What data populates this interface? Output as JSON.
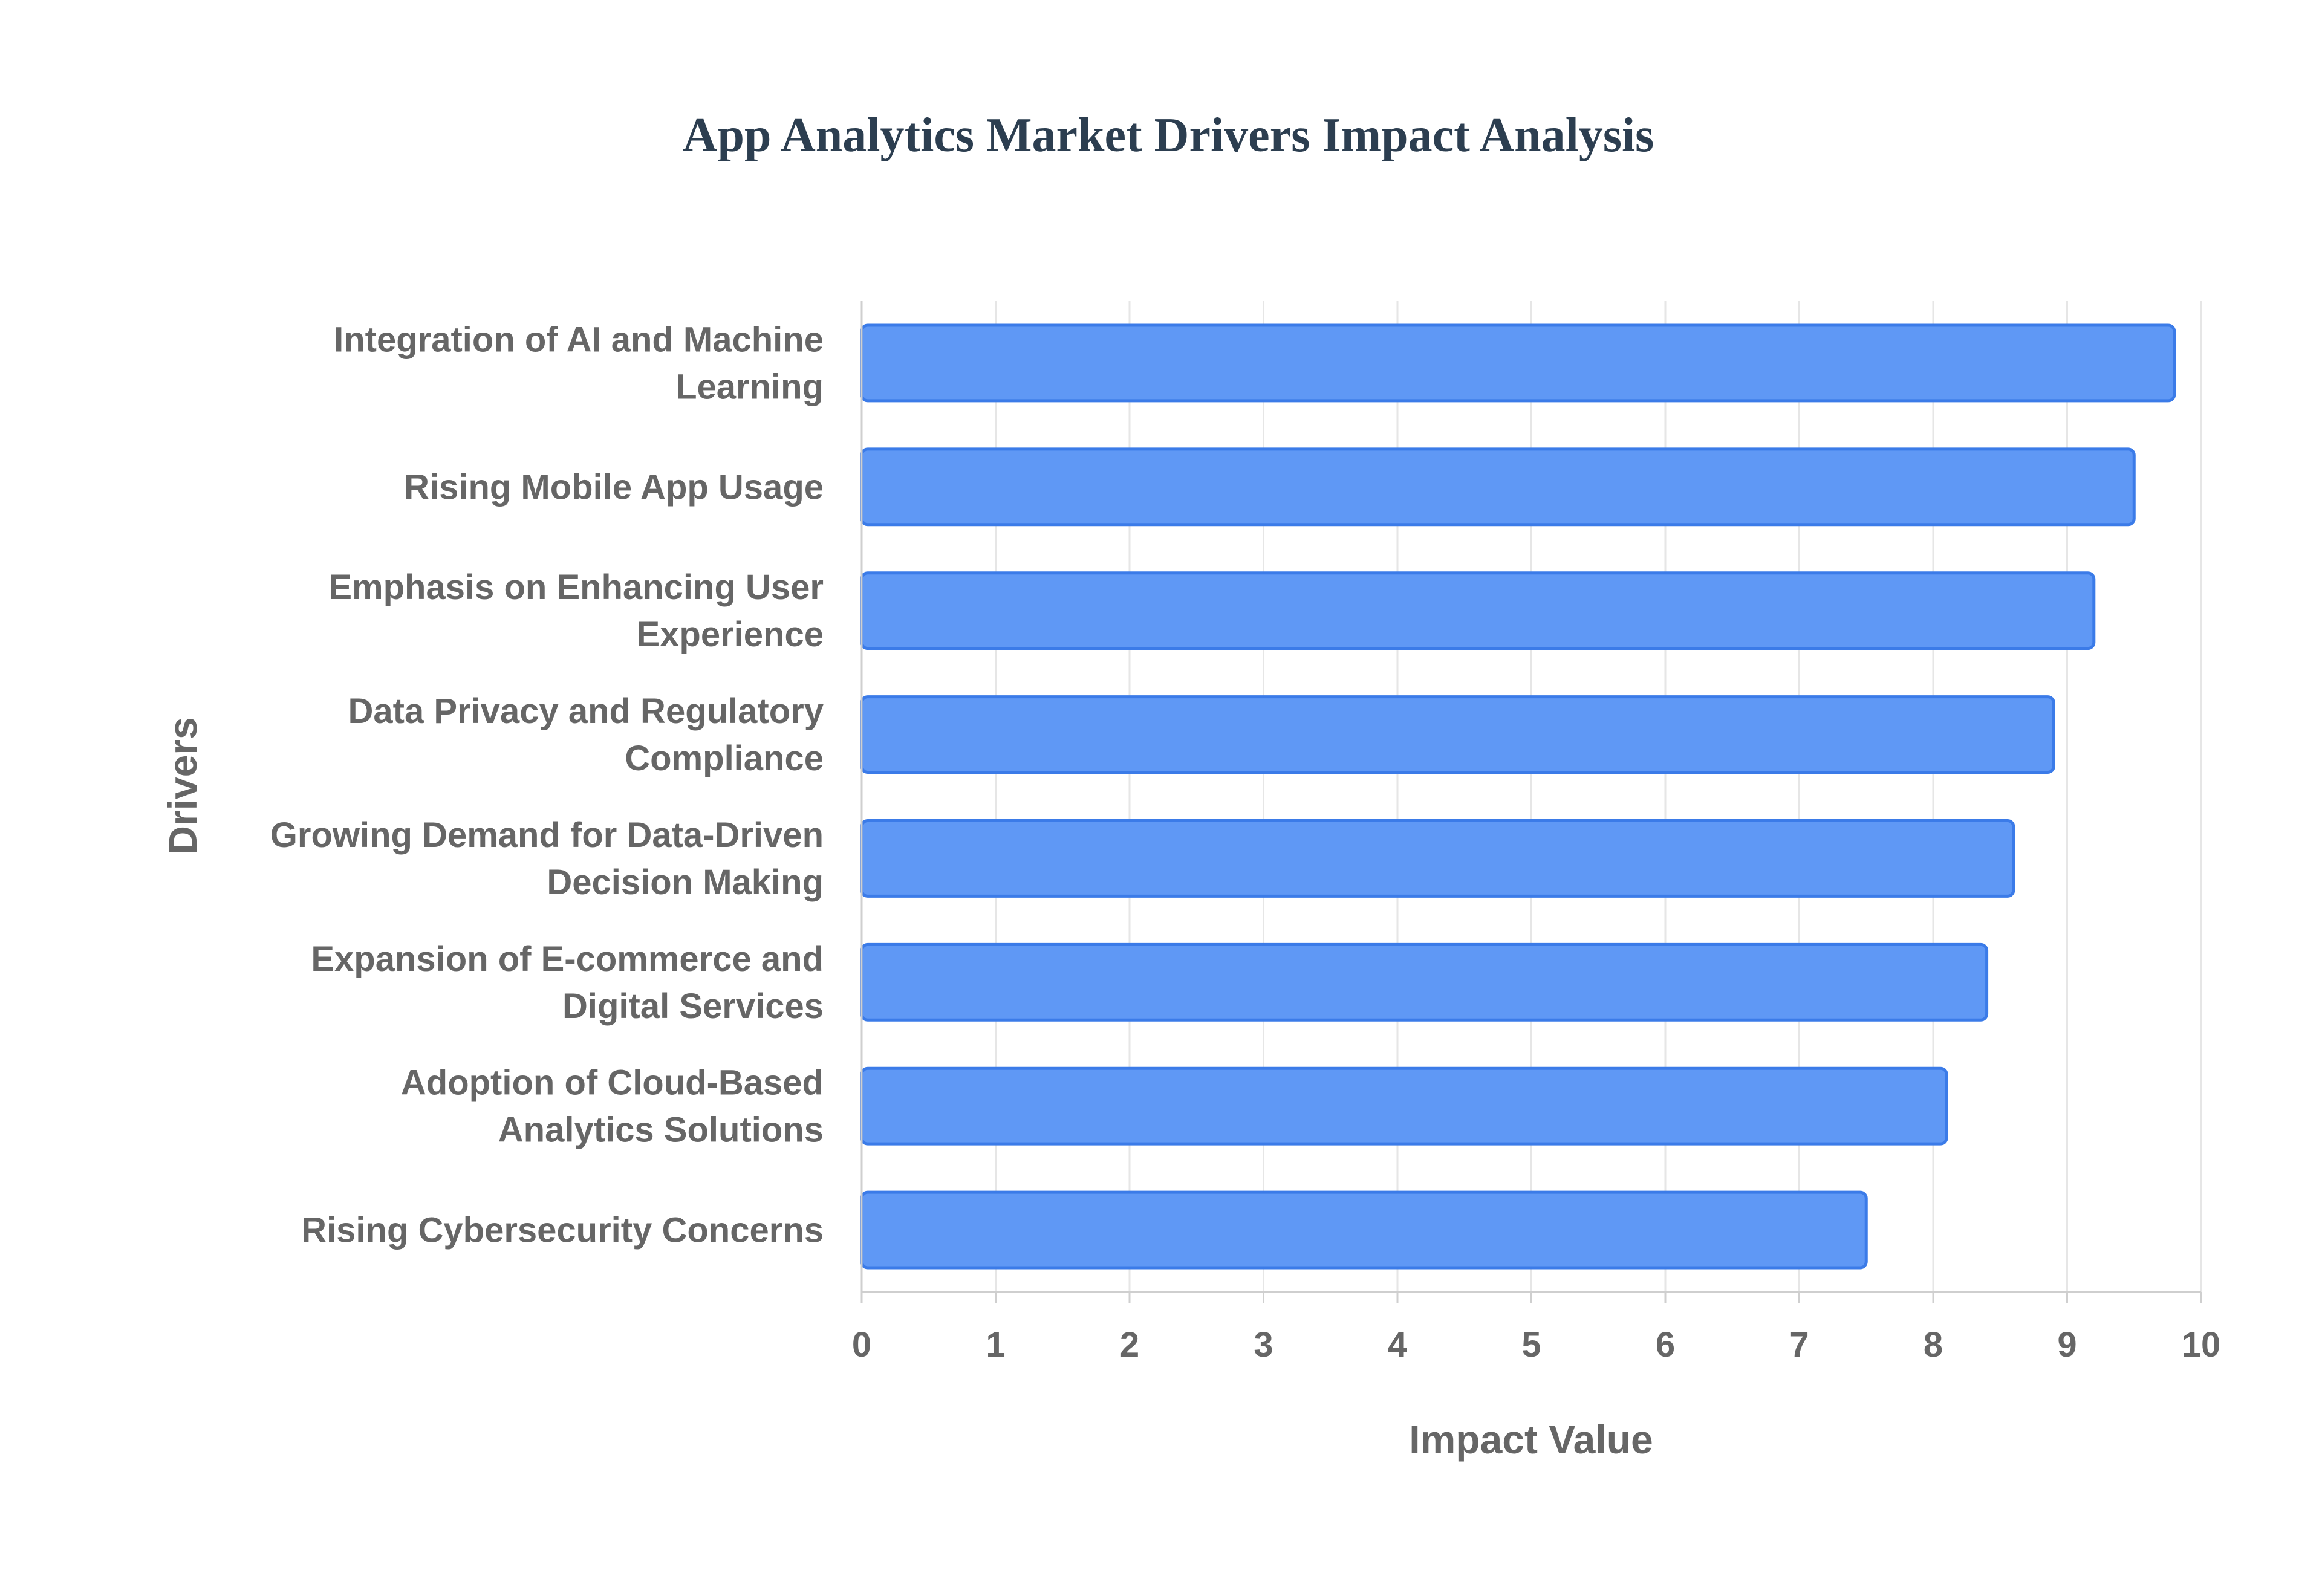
{
  "chart_data": {
    "type": "bar",
    "orientation": "horizontal",
    "title": "App Analytics Market Drivers Impact Analysis",
    "xlabel": "Impact Value",
    "ylabel": "Drivers",
    "xlim": [
      0,
      10
    ],
    "xticks": [
      "0",
      "1",
      "2",
      "3",
      "4",
      "5",
      "6",
      "7",
      "8",
      "9",
      "10"
    ],
    "grid": true,
    "legend": "none",
    "bar_color": "#5f98f5",
    "bar_border_color": "#3b7be8",
    "categories": [
      [
        "Integration of AI and Machine",
        "Learning"
      ],
      [
        "Rising Mobile App Usage"
      ],
      [
        "Emphasis on Enhancing User",
        "Experience"
      ],
      [
        "Data Privacy and Regulatory",
        "Compliance"
      ],
      [
        "Growing Demand for Data-Driven",
        "Decision Making"
      ],
      [
        "Expansion of E-commerce and",
        "Digital Services"
      ],
      [
        "Adoption of Cloud-Based",
        "Analytics Solutions"
      ],
      [
        "Rising Cybersecurity Concerns"
      ]
    ],
    "values": [
      9.8,
      9.5,
      9.2,
      8.9,
      8.6,
      8.4,
      8.1,
      7.5
    ]
  }
}
